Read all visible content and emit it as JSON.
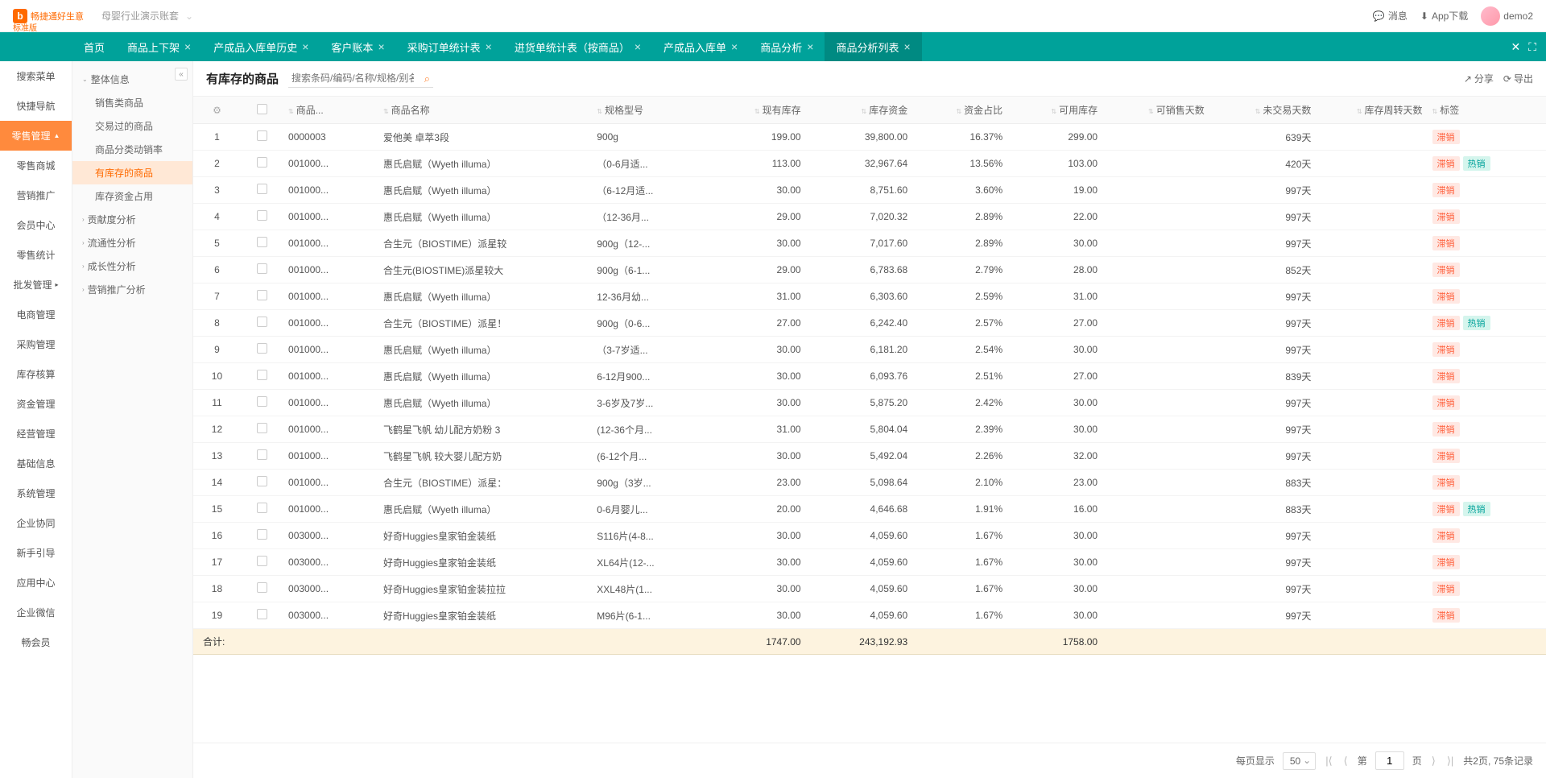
{
  "brand": {
    "name": "畅捷通好生意",
    "edition": "标准版"
  },
  "account": "母婴行业演示账套",
  "topRight": {
    "message": "消息",
    "download": "App下载",
    "user": "demo2"
  },
  "tabs": [
    {
      "label": "首页",
      "closable": false
    },
    {
      "label": "商品上下架",
      "closable": true
    },
    {
      "label": "产成品入库单历史",
      "closable": true
    },
    {
      "label": "客户账本",
      "closable": true
    },
    {
      "label": "采购订单统计表",
      "closable": true
    },
    {
      "label": "进货单统计表（按商品）",
      "closable": true
    },
    {
      "label": "产成品入库单",
      "closable": true
    },
    {
      "label": "商品分析",
      "closable": true
    },
    {
      "label": "商品分析列表",
      "closable": true,
      "active": true
    }
  ],
  "sidebar": [
    {
      "label": "搜索菜单"
    },
    {
      "label": "快捷导航"
    },
    {
      "label": "零售管理",
      "active": true,
      "caret": "▲"
    },
    {
      "label": "零售商城"
    },
    {
      "label": "营销推广"
    },
    {
      "label": "会员中心"
    },
    {
      "label": "零售统计"
    },
    {
      "label": "批发管理",
      "caret": "▸"
    },
    {
      "label": "电商管理"
    },
    {
      "label": "采购管理"
    },
    {
      "label": "库存核算"
    },
    {
      "label": "资金管理"
    },
    {
      "label": "经营管理"
    },
    {
      "label": "基础信息"
    },
    {
      "label": "系统管理"
    },
    {
      "label": "企业协同"
    },
    {
      "label": "新手引导"
    },
    {
      "label": "应用中心"
    },
    {
      "label": "企业微信"
    },
    {
      "label": "畅会员"
    }
  ],
  "nav2": {
    "groupMain": "整体信息",
    "subs": [
      "销售类商品",
      "交易过的商品",
      "商品分类动销率",
      "有库存的商品",
      "库存资金占用"
    ],
    "activeSub": 3,
    "otherGroups": [
      "贡献度分析",
      "流通性分析",
      "成长性分析",
      "营销推广分析"
    ]
  },
  "content": {
    "title": "有库存的商品",
    "searchPlaceholder": "搜索条码/编码/名称/规格/别名",
    "share": "分享",
    "export": "导出"
  },
  "columns": [
    "商品...",
    "商品名称",
    "规格型号",
    "现有库存",
    "库存资金",
    "资金占比",
    "可用库存",
    "可销售天数",
    "未交易天数",
    "库存周转天数",
    "标签"
  ],
  "rows": [
    {
      "idx": 1,
      "code": "0000003",
      "name": "爱他美 卓萃3段",
      "spec": "900g",
      "stock": "199.00",
      "fund": "39,800.00",
      "pct": "16.37%",
      "avail": "299.00",
      "saleDay": "",
      "noTrade": "639天",
      "turn": "",
      "tags": [
        "滞销"
      ]
    },
    {
      "idx": 2,
      "code": "001000...",
      "name": "惠氏启赋（Wyeth illuma）",
      "spec": "（0-6月适...",
      "stock": "113.00",
      "fund": "32,967.64",
      "pct": "13.56%",
      "avail": "103.00",
      "saleDay": "",
      "noTrade": "420天",
      "turn": "",
      "tags": [
        "滞销",
        "热销"
      ]
    },
    {
      "idx": 3,
      "code": "001000...",
      "name": "惠氏启赋（Wyeth illuma）",
      "spec": "（6-12月适...",
      "stock": "30.00",
      "fund": "8,751.60",
      "pct": "3.60%",
      "avail": "19.00",
      "saleDay": "",
      "noTrade": "997天",
      "turn": "",
      "tags": [
        "滞销"
      ]
    },
    {
      "idx": 4,
      "code": "001000...",
      "name": "惠氏启赋（Wyeth illuma）",
      "spec": "（12-36月...",
      "stock": "29.00",
      "fund": "7,020.32",
      "pct": "2.89%",
      "avail": "22.00",
      "saleDay": "",
      "noTrade": "997天",
      "turn": "",
      "tags": [
        "滞销"
      ]
    },
    {
      "idx": 5,
      "code": "001000...",
      "name": "合生元（BIOSTIME）派星较",
      "spec": "900g（12-...",
      "stock": "30.00",
      "fund": "7,017.60",
      "pct": "2.89%",
      "avail": "30.00",
      "saleDay": "",
      "noTrade": "997天",
      "turn": "",
      "tags": [
        "滞销"
      ]
    },
    {
      "idx": 6,
      "code": "001000...",
      "name": "合生元(BIOSTIME)派星较大",
      "spec": "900g（6-1...",
      "stock": "29.00",
      "fund": "6,783.68",
      "pct": "2.79%",
      "avail": "28.00",
      "saleDay": "",
      "noTrade": "852天",
      "turn": "",
      "tags": [
        "滞销"
      ]
    },
    {
      "idx": 7,
      "code": "001000...",
      "name": "惠氏启赋（Wyeth illuma）",
      "spec": "12-36月幼...",
      "stock": "31.00",
      "fund": "6,303.60",
      "pct": "2.59%",
      "avail": "31.00",
      "saleDay": "",
      "noTrade": "997天",
      "turn": "",
      "tags": [
        "滞销"
      ]
    },
    {
      "idx": 8,
      "code": "001000...",
      "name": "合生元（BIOSTIME）派星！",
      "spec": "900g（0-6...",
      "stock": "27.00",
      "fund": "6,242.40",
      "pct": "2.57%",
      "avail": "27.00",
      "saleDay": "",
      "noTrade": "997天",
      "turn": "",
      "tags": [
        "滞销",
        "热销"
      ]
    },
    {
      "idx": 9,
      "code": "001000...",
      "name": "惠氏启赋（Wyeth illuma）",
      "spec": "（3-7岁适...",
      "stock": "30.00",
      "fund": "6,181.20",
      "pct": "2.54%",
      "avail": "30.00",
      "saleDay": "",
      "noTrade": "997天",
      "turn": "",
      "tags": [
        "滞销"
      ]
    },
    {
      "idx": 10,
      "code": "001000...",
      "name": "惠氏启赋（Wyeth illuma）",
      "spec": "6-12月900...",
      "stock": "30.00",
      "fund": "6,093.76",
      "pct": "2.51%",
      "avail": "27.00",
      "saleDay": "",
      "noTrade": "839天",
      "turn": "",
      "tags": [
        "滞销"
      ]
    },
    {
      "idx": 11,
      "code": "001000...",
      "name": "惠氏启赋（Wyeth illuma）",
      "spec": "3-6岁及7岁...",
      "stock": "30.00",
      "fund": "5,875.20",
      "pct": "2.42%",
      "avail": "30.00",
      "saleDay": "",
      "noTrade": "997天",
      "turn": "",
      "tags": [
        "滞销"
      ]
    },
    {
      "idx": 12,
      "code": "001000...",
      "name": "飞鹤星飞帆 幼儿配方奶粉 3",
      "spec": "(12-36个月...",
      "stock": "31.00",
      "fund": "5,804.04",
      "pct": "2.39%",
      "avail": "30.00",
      "saleDay": "",
      "noTrade": "997天",
      "turn": "",
      "tags": [
        "滞销"
      ]
    },
    {
      "idx": 13,
      "code": "001000...",
      "name": "飞鹤星飞帆 较大婴儿配方奶",
      "spec": "(6-12个月...",
      "stock": "30.00",
      "fund": "5,492.04",
      "pct": "2.26%",
      "avail": "32.00",
      "saleDay": "",
      "noTrade": "997天",
      "turn": "",
      "tags": [
        "滞销"
      ]
    },
    {
      "idx": 14,
      "code": "001000...",
      "name": "合生元（BIOSTIME）派星：",
      "spec": "900g（3岁...",
      "stock": "23.00",
      "fund": "5,098.64",
      "pct": "2.10%",
      "avail": "23.00",
      "saleDay": "",
      "noTrade": "883天",
      "turn": "",
      "tags": [
        "滞销"
      ]
    },
    {
      "idx": 15,
      "code": "001000...",
      "name": "惠氏启赋（Wyeth illuma）",
      "spec": "0-6月婴儿...",
      "stock": "20.00",
      "fund": "4,646.68",
      "pct": "1.91%",
      "avail": "16.00",
      "saleDay": "",
      "noTrade": "883天",
      "turn": "",
      "tags": [
        "滞销",
        "热销"
      ]
    },
    {
      "idx": 16,
      "code": "003000...",
      "name": "好奇Huggies皇家铂金装纸",
      "spec": "S116片(4-8...",
      "stock": "30.00",
      "fund": "4,059.60",
      "pct": "1.67%",
      "avail": "30.00",
      "saleDay": "",
      "noTrade": "997天",
      "turn": "",
      "tags": [
        "滞销"
      ]
    },
    {
      "idx": 17,
      "code": "003000...",
      "name": "好奇Huggies皇家铂金装纸",
      "spec": "XL64片(12-...",
      "stock": "30.00",
      "fund": "4,059.60",
      "pct": "1.67%",
      "avail": "30.00",
      "saleDay": "",
      "noTrade": "997天",
      "turn": "",
      "tags": [
        "滞销"
      ]
    },
    {
      "idx": 18,
      "code": "003000...",
      "name": "好奇Huggies皇家铂金装拉拉",
      "spec": "XXL48片(1...",
      "stock": "30.00",
      "fund": "4,059.60",
      "pct": "1.67%",
      "avail": "30.00",
      "saleDay": "",
      "noTrade": "997天",
      "turn": "",
      "tags": [
        "滞销"
      ]
    },
    {
      "idx": 19,
      "code": "003000...",
      "name": "好奇Huggies皇家铂金装纸",
      "spec": "M96片(6-1...",
      "stock": "30.00",
      "fund": "4,059.60",
      "pct": "1.67%",
      "avail": "30.00",
      "saleDay": "",
      "noTrade": "997天",
      "turn": "",
      "tags": [
        "滞销"
      ]
    }
  ],
  "totals": {
    "label": "合计:",
    "stock": "1747.00",
    "fund": "243,192.93",
    "avail": "1758.00"
  },
  "pagination": {
    "perPageLabel": "每页显示",
    "perPage": "50",
    "pageLabel1": "第",
    "pageLabel2": "页",
    "current": "1",
    "summary": "共2页, 75条记录"
  }
}
